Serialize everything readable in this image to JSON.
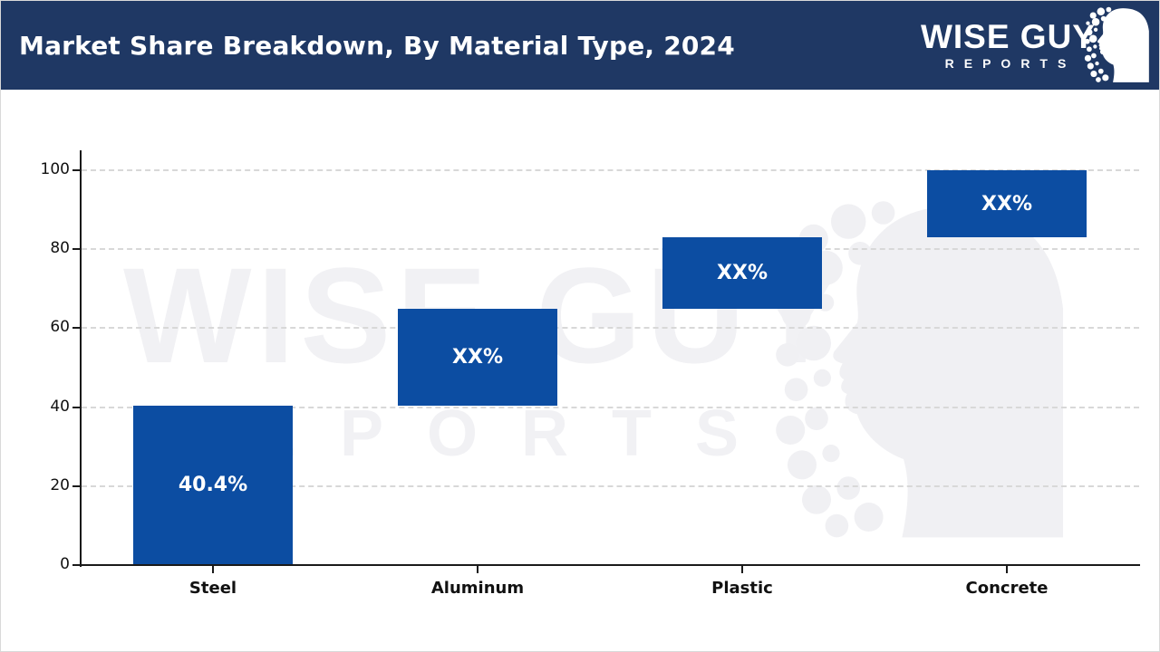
{
  "header": {
    "title": "Market Share Breakdown, By Material Type, 2024",
    "background_color": "#1f3864",
    "logo": {
      "line1": "WISE GUY",
      "line2": "REPORTS",
      "icon": "dotted-face-profile"
    }
  },
  "watermark": {
    "line1": "WISE GUY",
    "line2": "REPORTS",
    "icon": "dotted-face-profile",
    "color": "#f1f1f4"
  },
  "chart_data": {
    "type": "bar",
    "subtype": "waterfall",
    "title": "Market Share Breakdown, By Material Type, 2024",
    "categories": [
      "Steel",
      "Aluminum",
      "Plastic",
      "Concrete"
    ],
    "segments": [
      {
        "category": "Steel",
        "start": 0,
        "end": 40.4,
        "label": "40.4%"
      },
      {
        "category": "Aluminum",
        "start": 40.4,
        "end": 65,
        "label": "XX%"
      },
      {
        "category": "Plastic",
        "start": 65,
        "end": 83,
        "label": "XX%"
      },
      {
        "category": "Concrete",
        "start": 83,
        "end": 100,
        "label": "XX%"
      }
    ],
    "ylim": [
      0,
      100
    ],
    "yticks": [
      0,
      20,
      40,
      60,
      80,
      100
    ],
    "xlabel": "",
    "ylabel": "",
    "grid": "horizontal-dashed",
    "legend": null,
    "bar_color": "#0c4da2",
    "value_label_color": "#ffffff",
    "axis_color": "#1a1a1a",
    "grid_color": "#d8d8d8"
  }
}
